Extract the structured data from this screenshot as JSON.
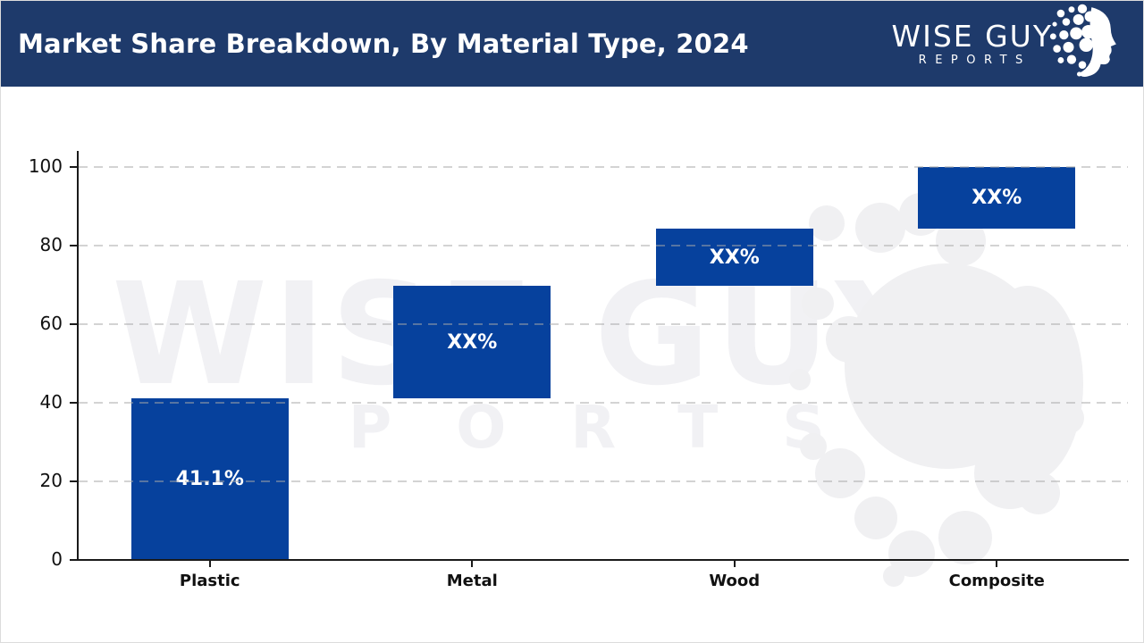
{
  "header": {
    "title": "Market Share Breakdown, By Material Type, 2024",
    "logo": {
      "line1": "WISE GUY",
      "line2": "REPORTS"
    }
  },
  "watermark": {
    "line1": "WISE GUY",
    "line2": "REPORTS"
  },
  "chart_data": {
    "type": "bar",
    "subtype": "waterfall-floating-bars",
    "title": "Market Share Breakdown, By Material Type, 2024",
    "xlabel": "",
    "ylabel": "",
    "ylim": [
      0,
      104
    ],
    "yticks": [
      0,
      20,
      40,
      60,
      80,
      100
    ],
    "grid": "horizontal dashed, drawn over bars",
    "legend": "none",
    "categories": [
      "Plastic",
      "Metal",
      "Wood",
      "Composite"
    ],
    "bars": [
      {
        "category": "Plastic",
        "start": 0,
        "end": 41.1,
        "label": "41.1%"
      },
      {
        "category": "Metal",
        "start": 41.1,
        "end": 69.6,
        "label": "XX%"
      },
      {
        "category": "Wood",
        "start": 69.6,
        "end": 84.2,
        "label": "XX%"
      },
      {
        "category": "Composite",
        "start": 84.2,
        "end": 100,
        "label": "XX%"
      }
    ]
  },
  "colors": {
    "header_bg": "#1e3a6b",
    "bar": "#06419d",
    "bar_label": "#ffffff",
    "axis": "#1a1a1a",
    "grid": "#c9c9c9",
    "watermark": "#f1f1f4"
  }
}
